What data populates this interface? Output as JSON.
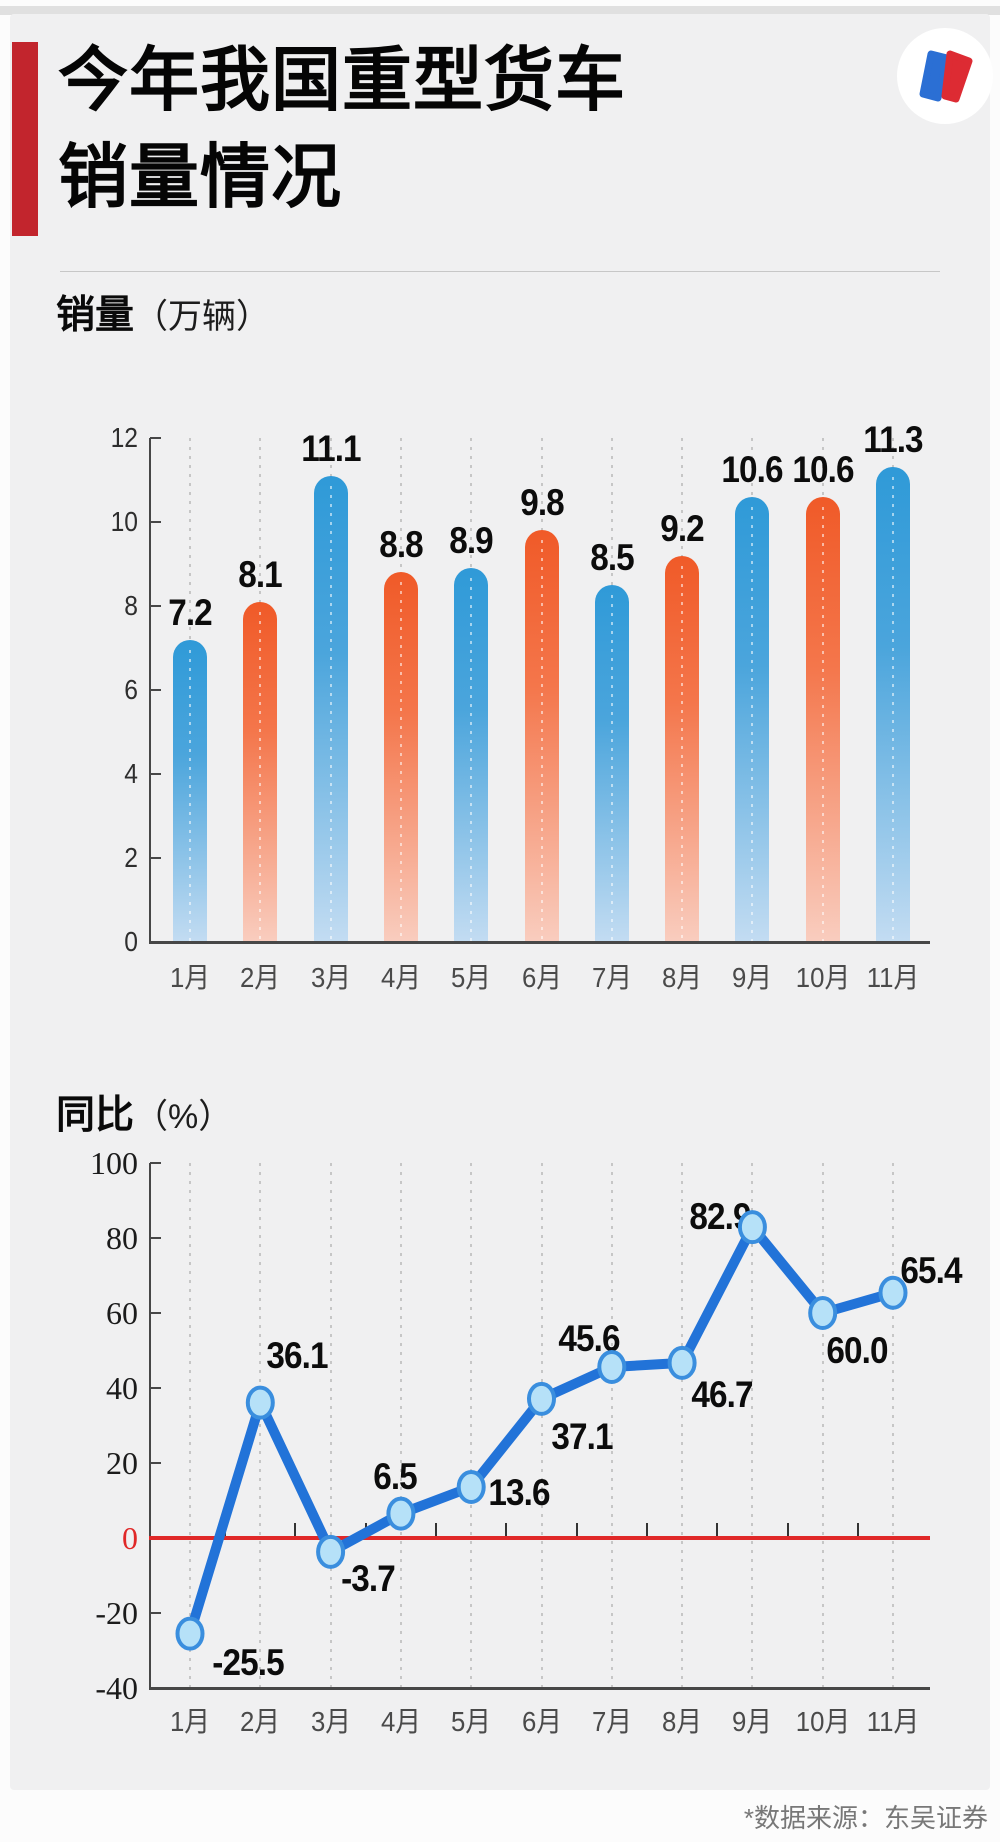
{
  "header": {
    "title_line1": "今年我国重型货车",
    "title_line2": "销量情况",
    "accent_color": "#c2252d"
  },
  "logo": {
    "name": "news-app-logo",
    "blue": "#2b6fd4",
    "red": "#dd2b33"
  },
  "sections": {
    "sales": {
      "label": "销量",
      "unit": "（万辆）"
    },
    "yoy": {
      "label": "同比",
      "unit": "（%）"
    }
  },
  "footer": {
    "source_note": "*数据来源：东吴证券"
  },
  "chart_data": [
    {
      "id": "sales-bar-chart",
      "type": "bar",
      "title": "销量（万辆）",
      "categories": [
        "1月",
        "2月",
        "3月",
        "4月",
        "5月",
        "6月",
        "7月",
        "8月",
        "9月",
        "10月",
        "11月"
      ],
      "values": [
        7.2,
        8.1,
        11.1,
        8.8,
        8.9,
        9.8,
        8.5,
        9.2,
        10.6,
        10.6,
        11.3
      ],
      "value_labels": [
        "7.2",
        "8.1",
        "11.1",
        "8.8",
        "8.9",
        "9.8",
        "8.5",
        "9.2",
        "10.6",
        "10.6",
        "11.3"
      ],
      "ylim": [
        0,
        12
      ],
      "yticks": [
        0,
        2,
        4,
        6,
        8,
        10,
        12
      ],
      "grid": "vertical-dotted",
      "legend": "none",
      "bar_color_pattern": [
        "blue",
        "orange"
      ],
      "colors": {
        "blue_top": "#2f9ad8",
        "blue_mid": "#4ba5dc",
        "blue_bottom": "#c3dcf2",
        "orange_top": "#f05a28",
        "orange_mid": "#f4764b",
        "orange_bottom": "#f9cdbf"
      }
    },
    {
      "id": "yoy-line-chart",
      "type": "line",
      "title": "同比（%）",
      "categories": [
        "1月",
        "2月",
        "3月",
        "4月",
        "5月",
        "6月",
        "7月",
        "8月",
        "9月",
        "10月",
        "11月"
      ],
      "values": [
        -25.5,
        36.1,
        -3.7,
        6.5,
        13.6,
        37.1,
        45.6,
        46.7,
        82.9,
        60.0,
        65.4
      ],
      "value_labels": [
        "-25.5",
        "36.1",
        "-3.7",
        "6.5",
        "13.6",
        "37.1",
        "45.6",
        "46.7",
        "82.9",
        "60.0",
        "65.4"
      ],
      "ylim": [
        -40,
        100
      ],
      "yticks": [
        -40,
        -20,
        0,
        20,
        40,
        60,
        80,
        100
      ],
      "grid": "vertical-dotted",
      "legend": "none",
      "colors": {
        "line": "#2273d8",
        "marker_fill": "#b6e1f8",
        "marker_stroke": "#3a8ede",
        "zero_line": "#e02828",
        "zero_tick_label": "#e02828"
      }
    }
  ]
}
